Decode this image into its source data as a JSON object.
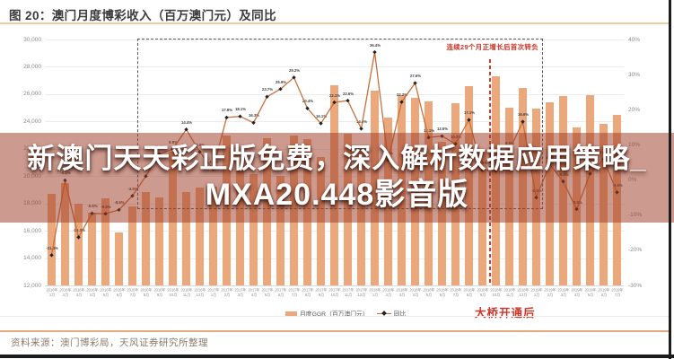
{
  "header": {
    "title": "图 20：澳门月度博彩收入（百万澳门元）及同比"
  },
  "watermark": {
    "line1": "新澳门天天彩正版免费，深入解析数据应用策略_",
    "line2": "MXA20.448影音版"
  },
  "annotations": {
    "box_note": "连续29个月正增长后首次转负",
    "bridge_note": "大桥开通后"
  },
  "legend": {
    "bars": "月度GGR（百万澳门元）",
    "line": "同比"
  },
  "source": "资料来源：澳门博彩局，天风证券研究所整理",
  "colors": {
    "bar": "#EBA87C",
    "line": "#C96F3C",
    "marker": "#222222",
    "red_accent": "#C9372A",
    "title_rule": "#F0CBA4",
    "overlay_bg": "rgba(158,62,38,0.52)"
  },
  "chart_data": {
    "type": "bar+line",
    "title": "澳门月度博彩收入（百万澳门元）及同比",
    "x_years": [
      "2016年",
      "2016年",
      "2016年",
      "2016年",
      "2016年",
      "2016年",
      "2016年",
      "2016年",
      "2016年",
      "2016年",
      "2016年",
      "2016年",
      "2017年",
      "2017年",
      "2017年",
      "2017年",
      "2017年",
      "2017年",
      "2017年",
      "2017年",
      "2017年",
      "2017年",
      "2017年",
      "2017年",
      "2018年",
      "2018年",
      "2018年",
      "2018年",
      "2018年",
      "2018年",
      "2018年",
      "2018年",
      "2018年",
      "2018年",
      "2018年",
      "2018年",
      "2019年",
      "2019年",
      "2019年",
      "2019年",
      "2019年",
      "2019年",
      "2019年"
    ],
    "x_months": [
      "1月",
      "2月",
      "3月",
      "4月",
      "5月",
      "6月",
      "7月",
      "8月",
      "9月",
      "10月",
      "11月",
      "12月",
      "1月",
      "2月",
      "3月",
      "4月",
      "5月",
      "6月",
      "7月",
      "8月",
      "9月",
      "10月",
      "11月",
      "12月",
      "1月",
      "2月",
      "3月",
      "4月",
      "5月",
      "6月",
      "7月",
      "8月",
      "9月",
      "10月",
      "11月",
      "12月",
      "1月",
      "2月",
      "3月",
      "4月",
      "5月",
      "6月",
      "7月"
    ],
    "series": [
      {
        "name": "月度GGR（百万澳门元）",
        "type": "bar",
        "axis": "left",
        "values": [
          18674,
          19521,
          17980,
          17340,
          18389,
          15885,
          17773,
          18837,
          18435,
          21818,
          18826,
          19177,
          19255,
          22993,
          21232,
          20164,
          22743,
          19992,
          22965,
          22676,
          21408,
          26630,
          23078,
          21981,
          26265,
          24312,
          25952,
          25727,
          25488,
          22490,
          25327,
          26559,
          21952,
          27328,
          24995,
          26468,
          24942,
          25370,
          25840,
          23588,
          25952,
          23812,
          24453
        ]
      },
      {
        "name": "同比",
        "type": "line",
        "axis": "right",
        "values": [
          -21.4,
          -0.1,
          -16.3,
          -9.5,
          -9.6,
          -8.5,
          -4.5,
          1.1,
          7.4,
          8.8,
          14.4,
          8.0,
          3.1,
          17.8,
          18.1,
          16.3,
          23.7,
          25.9,
          29.2,
          20.4,
          16.1,
          22.1,
          22.6,
          14.6,
          36.4,
          5.7,
          22.2,
          27.6,
          12.1,
          12.5,
          10.3,
          17.1,
          2.8,
          2.6,
          8.5,
          16.6,
          -5.0,
          4.4,
          -0.4,
          -8.3,
          1.8,
          5.9,
          -3.5
        ],
        "labels": [
          "-21.4%",
          "-0.1%",
          "-16.3%",
          "-9.5%",
          "-9.6%",
          "-8.5%",
          "-4.5%",
          "1.1%",
          "7.4%",
          "8.8%",
          "14.4%",
          "8.0%",
          "3.1%",
          "17.8%",
          "18.1%",
          "16.3%",
          "23.7%",
          "25.9%",
          "29.2%",
          "20.4%",
          "16.1%",
          "22.1%",
          "22.6%",
          "14.6%",
          "36.4%",
          "5.7%",
          "22.2%",
          "27.6%",
          "12.1%",
          "12.5%",
          "10.3%",
          "17.1%",
          "2.8%",
          "2.6%",
          "8.5%",
          "16.6%",
          "-5.0%",
          "4.4%",
          "-0.4%",
          "-8.3%",
          "1.8%",
          "5.9%",
          "-3.5%"
        ]
      }
    ],
    "left_axis": {
      "min": 12000,
      "max": 30000,
      "step": 2000,
      "tick_values": [
        30000,
        28000,
        26000,
        24000,
        22000,
        20000,
        18000,
        16000,
        14000,
        12000
      ],
      "tick_labels": [
        "30,000",
        "28,000",
        "26,000",
        "24,000",
        "22,000",
        "20,000",
        "18,000",
        "16,000",
        "14,000",
        "12,000"
      ]
    },
    "right_axis": {
      "min": -30,
      "max": 40,
      "step": 10,
      "tick_values": [
        40,
        30,
        20,
        10,
        0,
        -10,
        -20,
        -30
      ],
      "tick_labels": [
        "40%",
        "30%",
        "20%",
        "10%",
        "0%",
        "-10%",
        "-20%",
        "-30%"
      ]
    },
    "grid": true,
    "legend_position": "bottom"
  }
}
